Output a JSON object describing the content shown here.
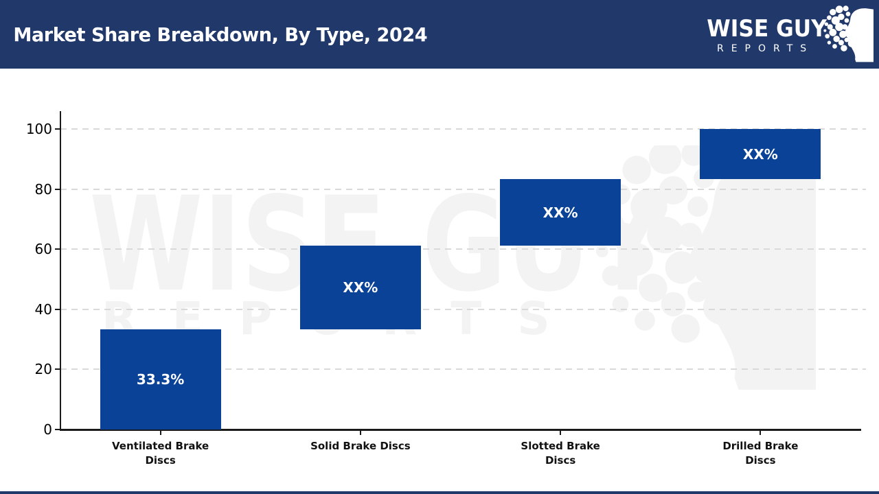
{
  "header": {
    "title": "Market Share Breakdown, By Type, 2024",
    "bg_color": "#21386a",
    "logo": {
      "line1": "WISE GUY",
      "line2": "REPORTS"
    }
  },
  "watermark": {
    "line1": "WISE GUY",
    "line2": "REPORTS"
  },
  "chart_data": {
    "type": "bar",
    "subtype": "floating-waterfall",
    "title": "Market Share Breakdown, By Type, 2024",
    "categories": [
      "Ventilated Brake Discs",
      "Solid Brake Discs",
      "Slotted Brake Discs",
      "Drilled Brake Discs"
    ],
    "category_lines": [
      [
        "Ventilated Brake",
        "Discs"
      ],
      [
        "Solid Brake Discs"
      ],
      [
        "Slotted Brake",
        "Discs"
      ],
      [
        "Drilled Brake",
        "Discs"
      ]
    ],
    "segments": [
      {
        "start": 0,
        "end": 33.3,
        "label": "33.3%"
      },
      {
        "start": 33.3,
        "end": 61.1,
        "label": "XX%"
      },
      {
        "start": 61.1,
        "end": 83.3,
        "label": "XX%"
      },
      {
        "start": 83.3,
        "end": 100,
        "label": "XX%"
      }
    ],
    "y_ticks": [
      0,
      20,
      40,
      60,
      80,
      100
    ],
    "ylim": [
      0,
      105
    ],
    "xlabel": "",
    "ylabel": "",
    "grid": true,
    "grid_style": "dashed",
    "grid_color": "#d9d9d9",
    "bar_color": "#0a4297",
    "bar_label_color": "#ffffff",
    "legend": "none"
  }
}
